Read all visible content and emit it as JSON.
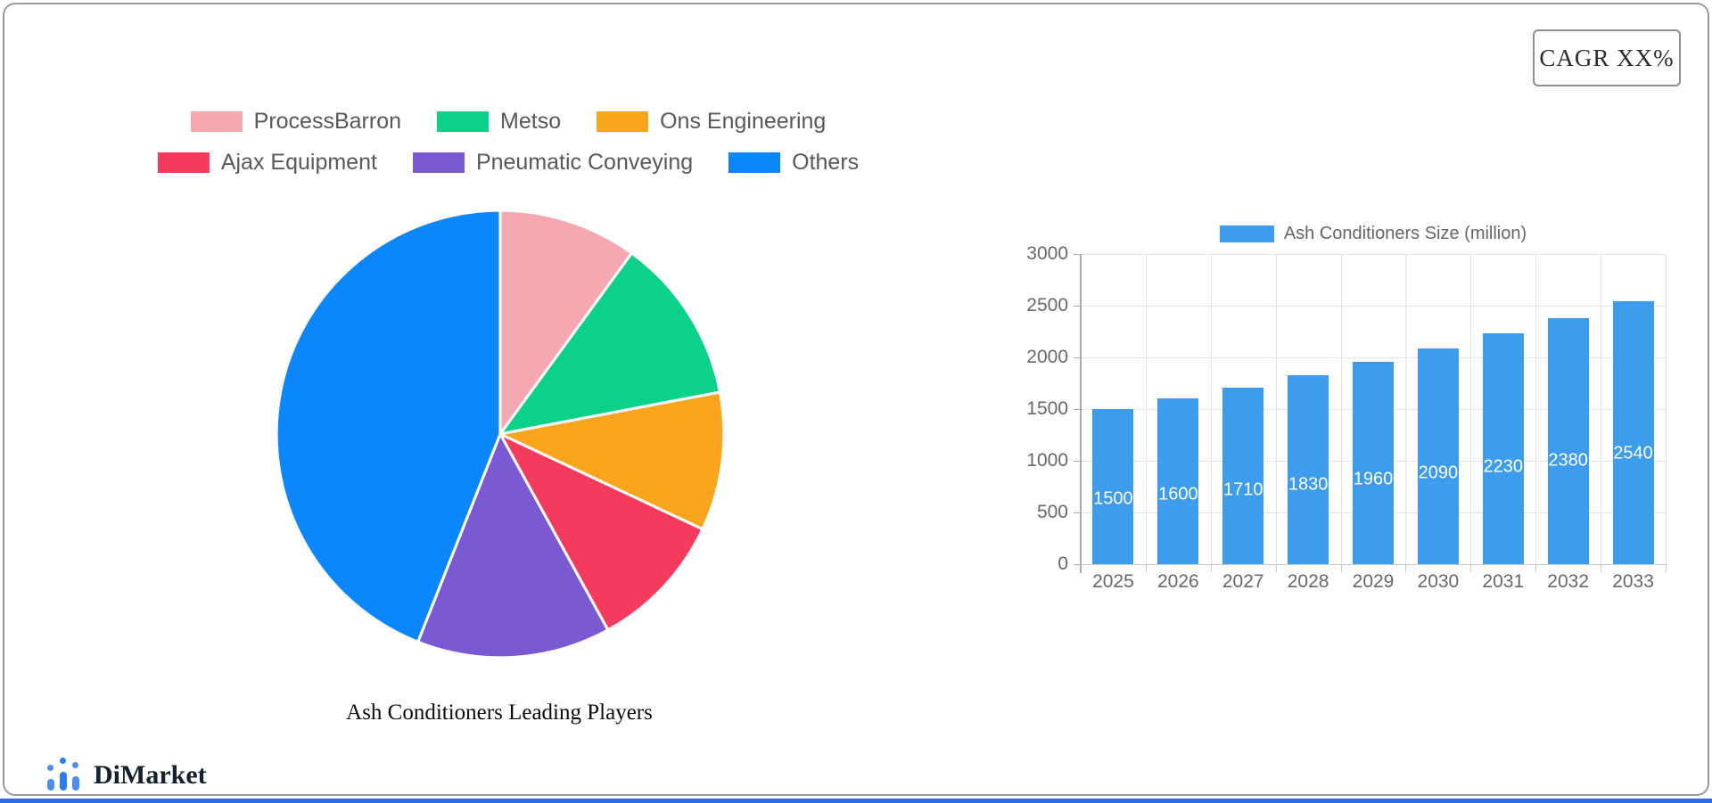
{
  "cagr_badge": {
    "label": "CAGR XX%"
  },
  "brand": {
    "name": "DiMarket",
    "icon": "bar-chart-icon",
    "icon_colors": [
      "#4C8DF3",
      "#2E7BF0",
      "#4C8DF3"
    ],
    "text_color": "#16212E"
  },
  "theme": {
    "card_border": "#9B9B9B",
    "bottom_bar": "#2C6CE6",
    "legend_text": "#58595B",
    "axis_text": "#66696C",
    "grid_color": "#E4E4E4",
    "axis_line": "#ABABAB"
  },
  "chart_data": [
    {
      "type": "pie",
      "title": "Ash Conditioners Leading Players",
      "labels": [
        "ProcessBarron",
        "Metso",
        "Ons Engineering",
        "Ajax Equipment",
        "Pneumatic Conveying",
        "Others"
      ],
      "values": [
        10,
        12,
        10,
        10,
        14,
        44
      ],
      "value_unit": "% share (estimated from arc angles)",
      "colors": [
        "#F5A8B0",
        "#0CD289",
        "#F9A51D",
        "#F43B5E",
        "#7A59D2",
        "#0B86FB"
      ],
      "legend_rows": [
        [
          0,
          1,
          2
        ],
        [
          3,
          4,
          5
        ]
      ],
      "legend_position": "top",
      "slice_border_color": "#FFFFFF",
      "start_angle_deg": 0,
      "direction": "clockwise"
    },
    {
      "type": "bar",
      "legend_label": "Ash Conditioners Size (million)",
      "categories": [
        "2025",
        "2026",
        "2027",
        "2028",
        "2029",
        "2030",
        "2031",
        "2032",
        "2033"
      ],
      "values": [
        1500,
        1600,
        1710,
        1830,
        1960,
        2090,
        2230,
        2380,
        2540
      ],
      "bar_color": "#3D9CEB",
      "value_label_color": "#FFFFFF",
      "ylim": [
        0,
        3000
      ],
      "yticks": [
        0,
        500,
        1000,
        1500,
        2000,
        2500,
        3000
      ],
      "grid": true,
      "legend_position": "top"
    }
  ]
}
